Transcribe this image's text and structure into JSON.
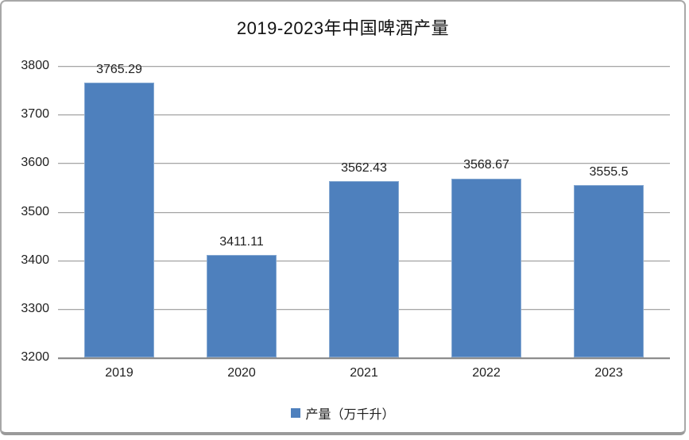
{
  "frame": {
    "background": "#ffffff",
    "border_color": "#a8a8a8"
  },
  "chart_data": {
    "type": "bar",
    "title": "2019-2023年中国啤酒产量",
    "categories": [
      "2019",
      "2020",
      "2021",
      "2022",
      "2023"
    ],
    "values": [
      3765.29,
      3411.11,
      3562.43,
      3568.67,
      3555.5
    ],
    "value_labels": [
      "3765.29",
      "3411.11",
      "3562.43",
      "3568.67",
      "3555.5"
    ],
    "legend_label": "产量（万千升）",
    "xlabel": "",
    "ylabel": "",
    "ylim": [
      3200,
      3800
    ],
    "ytick_step": 100,
    "yticks": [
      3200,
      3300,
      3400,
      3500,
      3600,
      3700,
      3800
    ],
    "grid": true,
    "legend_position": "bottom",
    "colors": {
      "bar": "#4e80bd",
      "bar_edge": "#86a9d2",
      "gridline": "#a6a6a6",
      "axis": "#8c8c8c",
      "text": "#1f1f1f"
    }
  }
}
